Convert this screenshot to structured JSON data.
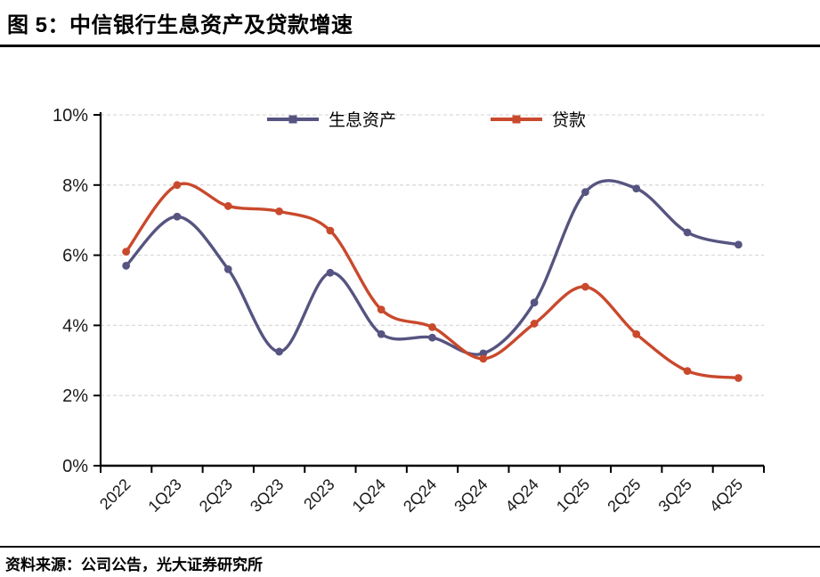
{
  "header": {
    "title": "图 5：中信银行生息资产及贷款增速"
  },
  "footer": {
    "source": "资料来源：公司公告，光大证券研究所"
  },
  "chart_data": {
    "type": "line",
    "title": "图 5：中信银行生息资产及贷款增速",
    "categories": [
      "2022",
      "1Q23",
      "2Q23",
      "3Q23",
      "2023",
      "1Q24",
      "2Q24",
      "3Q24",
      "4Q24",
      "1Q25",
      "2Q25",
      "3Q25",
      "4Q25"
    ],
    "series": [
      {
        "name": "生息资产",
        "color": "#565480",
        "values": [
          5.7,
          7.1,
          5.6,
          3.25,
          5.5,
          3.75,
          3.65,
          3.2,
          4.65,
          7.8,
          7.9,
          6.65,
          6.3
        ]
      },
      {
        "name": "贷款",
        "color": "#C9492C",
        "values": [
          6.1,
          8.0,
          7.4,
          7.25,
          6.7,
          4.45,
          3.95,
          3.05,
          4.05,
          5.1,
          3.75,
          2.7,
          2.5
        ]
      }
    ],
    "xlabel": "",
    "ylabel": "",
    "ylim": [
      0,
      10
    ],
    "ytick_step": 2,
    "ytick_suffix": "%",
    "grid": "horizontal-dashed",
    "grid_color": "#D9D9D9",
    "axis_color": "#000000",
    "legend_position": "top-center",
    "line_smoothing": true,
    "x_label_rotation": -45
  }
}
